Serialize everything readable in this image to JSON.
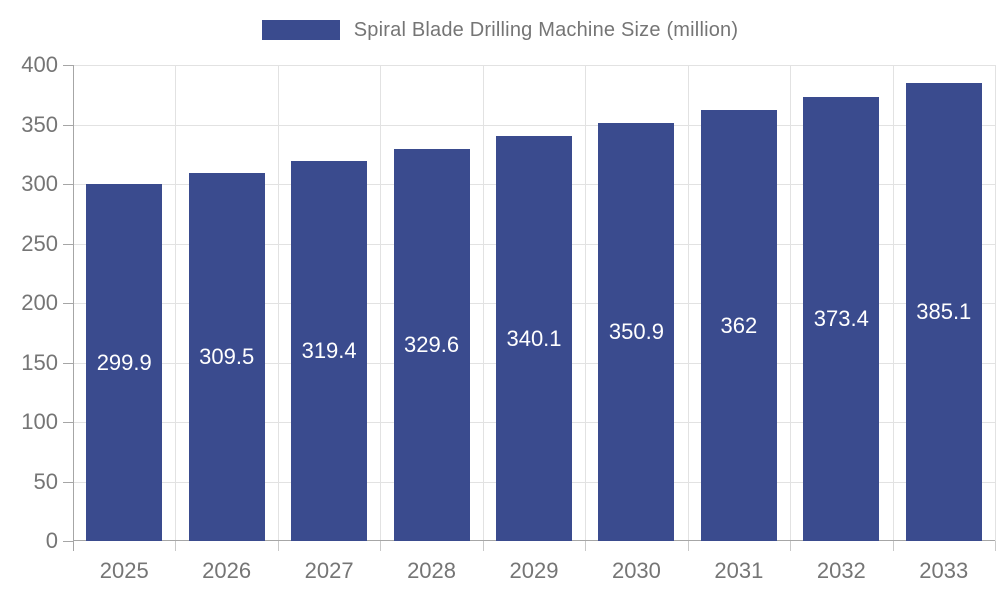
{
  "legend": {
    "label": "Spiral Blade Drilling Machine Size (million)"
  },
  "colors": {
    "bar": "#3a4b8e",
    "bar_label": "#ffffff",
    "axis_label": "#757575",
    "grid_line": "#e2e2e2",
    "axis_line": "#a6a6a6",
    "background": "#ffffff"
  },
  "chart_data": {
    "type": "bar",
    "title": "",
    "legend": "Spiral Blade Drilling Machine Size (million)",
    "legend_position": "top-center",
    "categories": [
      "2025",
      "2026",
      "2027",
      "2028",
      "2029",
      "2030",
      "2031",
      "2032",
      "2033"
    ],
    "values": [
      299.9,
      309.5,
      319.4,
      329.6,
      340.1,
      350.9,
      362,
      373.4,
      385.1
    ],
    "value_labels": [
      "299.9",
      "309.5",
      "319.4",
      "329.6",
      "340.1",
      "350.9",
      "362",
      "373.4",
      "385.1"
    ],
    "xlabel": "",
    "ylabel": "",
    "ylim": [
      0,
      400
    ],
    "yticks": [
      0,
      50,
      100,
      150,
      200,
      250,
      300,
      350,
      400
    ],
    "grid": true,
    "value_label_position": "center-inside"
  }
}
